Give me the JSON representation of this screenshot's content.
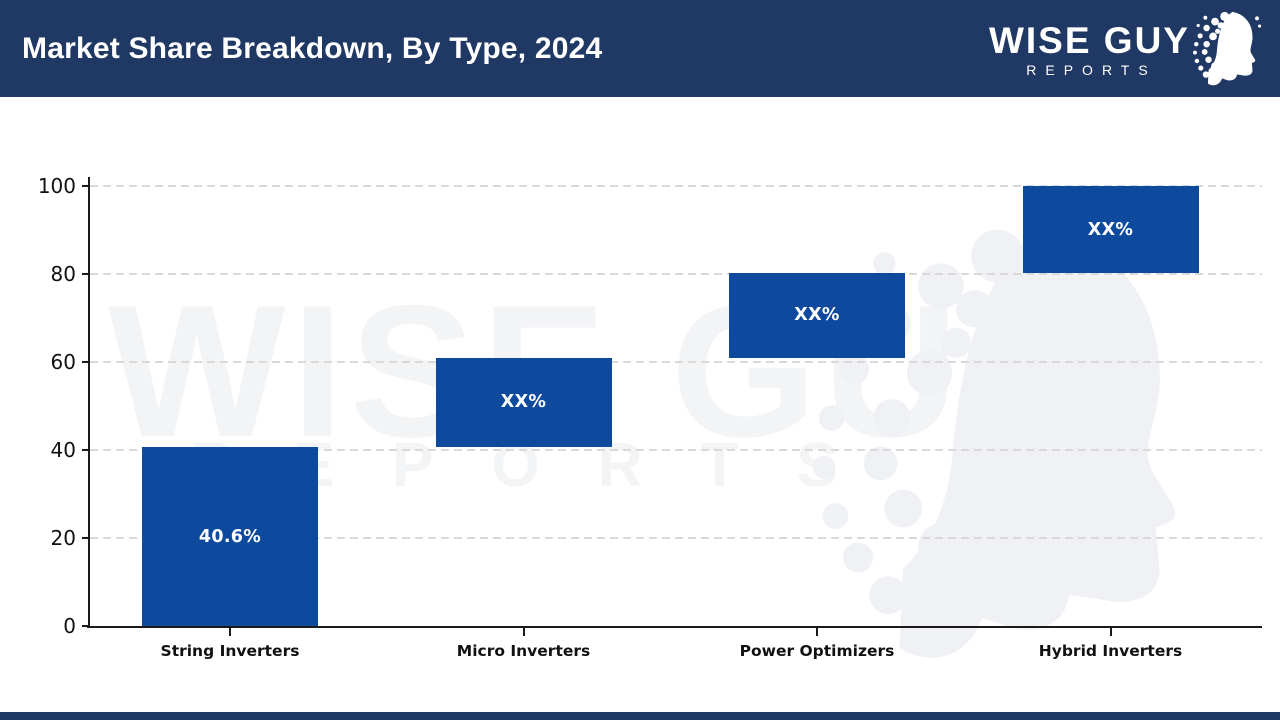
{
  "header": {
    "title": "Market Share Breakdown, By Type, 2024",
    "logo": {
      "line1": "WISE GUY",
      "line2": "REPORTS"
    }
  },
  "watermark": {
    "line1": "WISE GUY",
    "line2": "REPORTS",
    "head_icon": "dotted-head-profile"
  },
  "colors": {
    "header_bg": "#1f3864",
    "footer_bg": "#1f3864",
    "bar": "#0d4a9e",
    "bar_label": "#ffffff",
    "gridline": "#d9d9d9",
    "axis": "#1a1a1a",
    "watermark": "#f3f4f6"
  },
  "chart_data": {
    "type": "bar",
    "variant": "waterfall",
    "title": "Market Share Breakdown, By Type, 2024",
    "categories": [
      "String Inverters",
      "Micro Inverters",
      "Power Optimizers",
      "Hybrid Inverters"
    ],
    "segments": [
      {
        "category": "String Inverters",
        "start": 0,
        "end": 40.6,
        "label": "40.6%"
      },
      {
        "category": "Micro Inverters",
        "start": 40.6,
        "end": 61.0,
        "label": "XX%"
      },
      {
        "category": "Power Optimizers",
        "start": 61.0,
        "end": 80.2,
        "label": "XX%"
      },
      {
        "category": "Hybrid Inverters",
        "start": 80.2,
        "end": 100,
        "label": "XX%"
      }
    ],
    "ylim": [
      0,
      100
    ],
    "yticks": [
      0,
      20,
      40,
      60,
      80,
      100
    ],
    "xlabel": "",
    "ylabel": "",
    "grid": "horizontal-dashed",
    "legend": false,
    "bar_color": "#0d4a9e",
    "bar_label_color": "#ffffff"
  }
}
